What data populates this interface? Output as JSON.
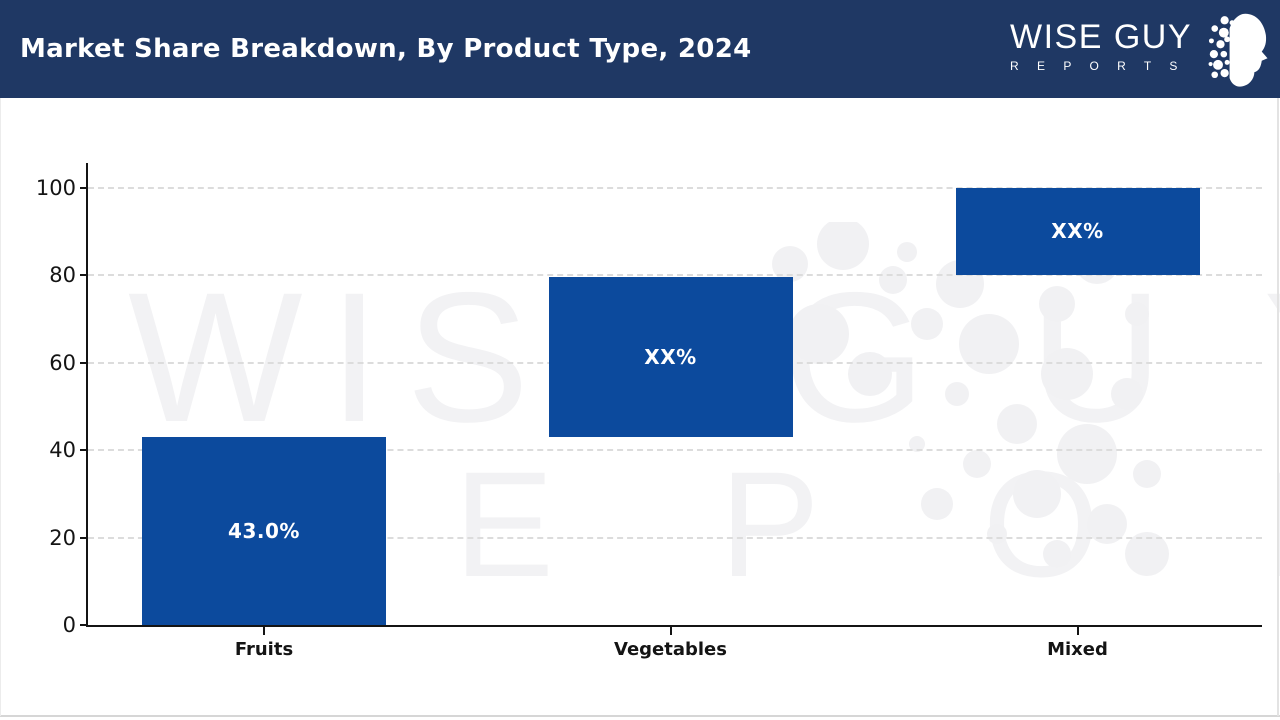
{
  "header": {
    "title": "Market Share Breakdown, By Product Type, 2024",
    "bg_color": "#1f3864",
    "logo": {
      "name": "WISE GUY",
      "subtext": "R E P O R T S"
    }
  },
  "watermark": {
    "line1": "WISE G U Y",
    "line2": "R E P O R T S"
  },
  "chart_data": {
    "type": "bar",
    "subtype": "waterfall",
    "title": "Market Share Breakdown, By Product Type, 2024",
    "categories": [
      "Fruits",
      "Vegetables",
      "Mixed"
    ],
    "segments": [
      {
        "category": "Fruits",
        "start": 0,
        "end": 43,
        "label": "43.0%"
      },
      {
        "category": "Vegetables",
        "start": 43,
        "end": 79.5,
        "label": "XX%"
      },
      {
        "category": "Mixed",
        "start": 80,
        "end": 100,
        "label": "XX%"
      }
    ],
    "yticks": [
      0,
      20,
      40,
      60,
      80,
      100
    ],
    "ylim": [
      0,
      105.5
    ],
    "xlabel": "",
    "ylabel": "",
    "bar_color": "#0c4a9d",
    "bar_label_color": "#ffffff",
    "grid": {
      "horizontal": true,
      "style": "dashed",
      "color": "#dcdcdc"
    },
    "legend": "none"
  }
}
